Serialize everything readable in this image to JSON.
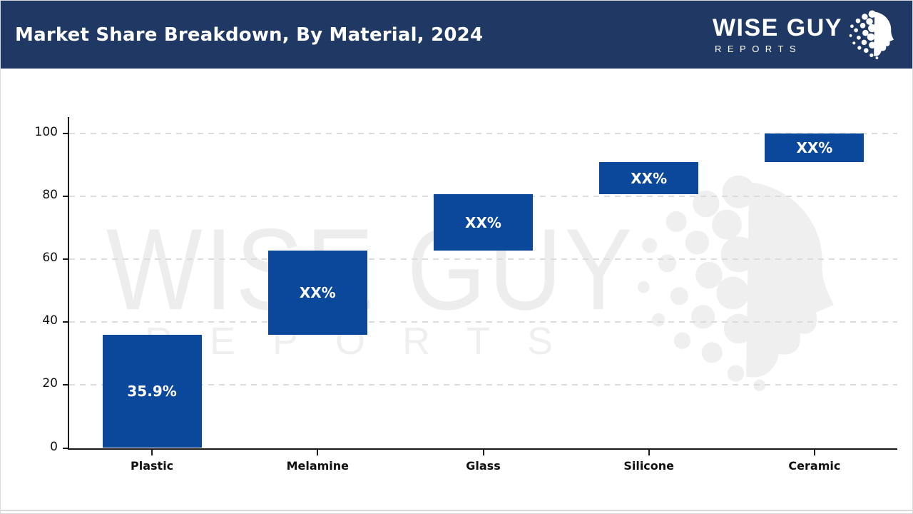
{
  "page": {
    "background": "#ffffff",
    "frame_color": "#d9d9d9"
  },
  "header": {
    "background": "#1f3864",
    "title": "Market Share Breakdown, By Material, 2024",
    "title_color": "#ffffff",
    "logo": {
      "line1": "WISE GUY",
      "line2": "REPORTS",
      "color": "#ffffff",
      "icon": "dotted-head-profile"
    }
  },
  "watermark": {
    "line1": "WISE GUY",
    "line2": "REPORTS",
    "color": "#ededed",
    "icon": "dotted-head-profile"
  },
  "chart_data": {
    "type": "bar",
    "variant": "waterfall",
    "title": "Market Share Breakdown, By Material, 2024",
    "categories": [
      "Plastic",
      "Melamine",
      "Glass",
      "Silicone",
      "Ceramic"
    ],
    "segments": [
      {
        "category": "Plastic",
        "start": 0,
        "end": 35.9,
        "label": "35.9%",
        "value": 35.9
      },
      {
        "category": "Melamine",
        "start": 35.9,
        "end": 62.7,
        "label": "XX%",
        "value_estimated": 26.8
      },
      {
        "category": "Glass",
        "start": 62.7,
        "end": 80.6,
        "label": "XX%",
        "value_estimated": 17.9
      },
      {
        "category": "Silicone",
        "start": 80.6,
        "end": 91.0,
        "label": "XX%",
        "value_estimated": 10.4
      },
      {
        "category": "Ceramic",
        "start": 91.0,
        "end": 100,
        "label": "XX%",
        "value_estimated": 9.0
      }
    ],
    "yticks": [
      0,
      20,
      40,
      60,
      80,
      100
    ],
    "ylim": [
      0,
      105
    ],
    "xlabel": "",
    "ylabel": "",
    "grid": "horizontal-dashed",
    "gridline_color": "#dcdcdc",
    "axis_color": "#1a1a1a",
    "legend": "none",
    "bar_color": "#0b489c",
    "bar_label_color": "#ffffff",
    "tick_label_color": "#111111"
  }
}
